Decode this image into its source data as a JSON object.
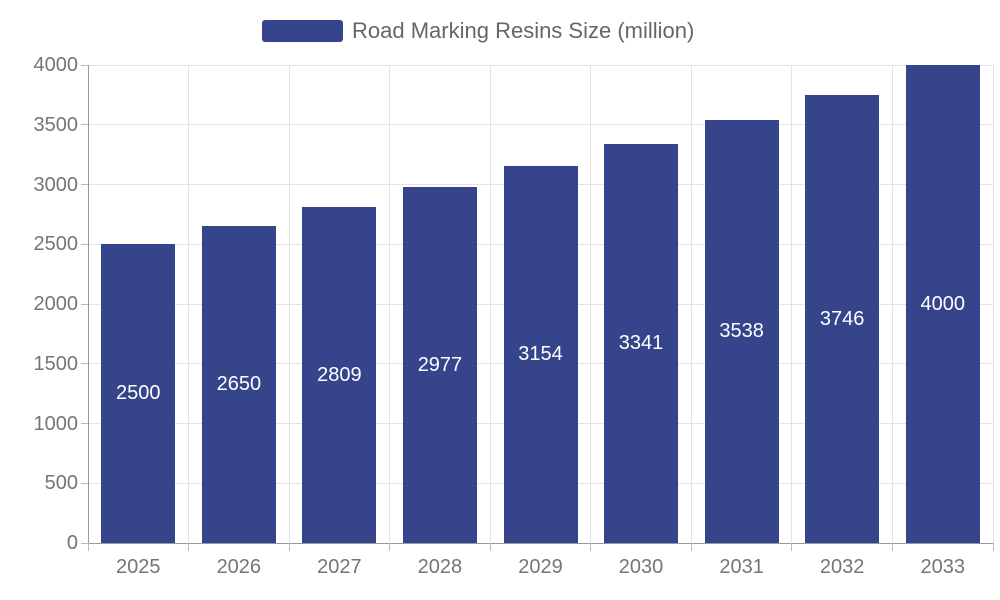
{
  "legend": {
    "label": "Road Marking Resins Size (million)",
    "swatch_color": "#36458b",
    "text_color": "#666666"
  },
  "chart_data": {
    "type": "bar",
    "title": "Road Marking Resins Size (million)",
    "categories": [
      "2025",
      "2026",
      "2027",
      "2028",
      "2029",
      "2030",
      "2031",
      "2032",
      "2033"
    ],
    "values": [
      2500,
      2650,
      2809,
      2977,
      3154,
      3341,
      3538,
      3746,
      4000
    ],
    "series": [
      {
        "name": "Road Marking Resins Size (million)",
        "values": [
          2500,
          2650,
          2809,
          2977,
          3154,
          3341,
          3538,
          3746,
          4000
        ]
      }
    ],
    "xlabel": "",
    "ylabel": "",
    "ylim": [
      0,
      4000
    ],
    "yticks": [
      0,
      500,
      1000,
      1500,
      2000,
      2500,
      3000,
      3500,
      4000
    ],
    "grid": true,
    "legend_position": "top-center",
    "bar_color": "#36458b",
    "bar_label_color": "#ffffff",
    "axis_label_color": "#757575",
    "gridline_color": "#e3e3e3",
    "axis_line_color": "#999999",
    "tick_color": "#bbbbbb"
  }
}
